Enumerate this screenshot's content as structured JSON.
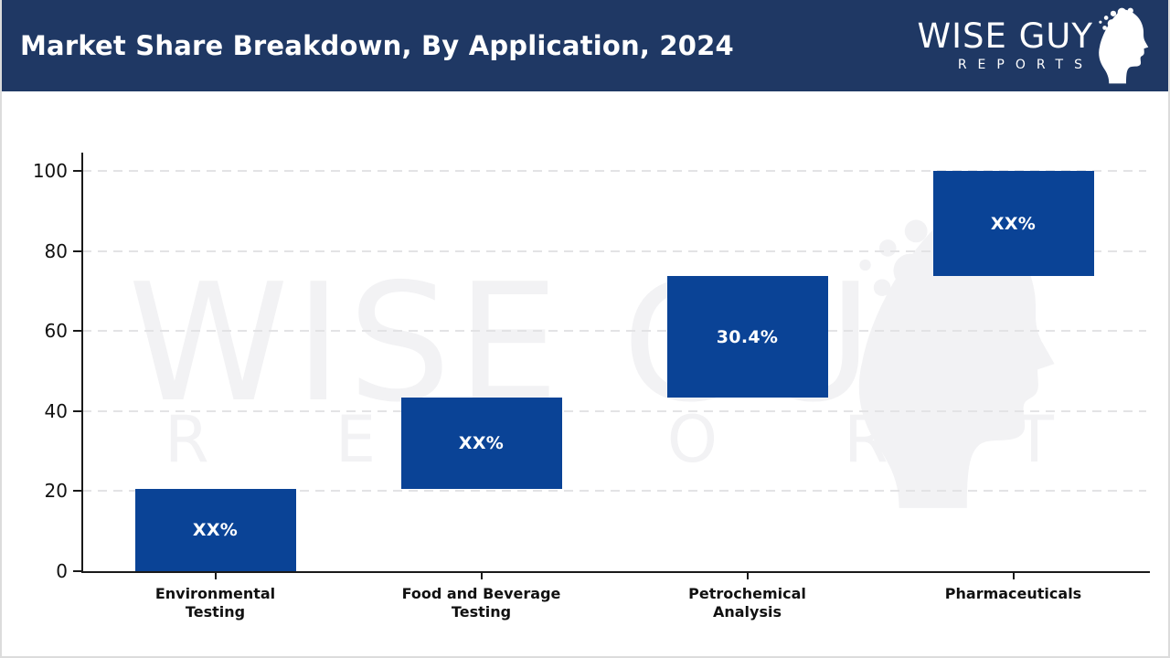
{
  "header": {
    "title": "Market Share Breakdown, By Application, 2024",
    "logo": {
      "brand_line1": "WISE GUY",
      "brand_line2": "REPORTS"
    }
  },
  "watermark": {
    "line1": "WISE GU",
    "line2": "R E P O R T S"
  },
  "chart_data": {
    "type": "bar",
    "subtype": "floating-segment-waterfall",
    "title": "Market Share Breakdown, By Application, 2024",
    "categories": [
      {
        "lines": [
          "Environmental",
          "Testing"
        ]
      },
      {
        "lines": [
          "Food and Beverage",
          "Testing"
        ]
      },
      {
        "lines": [
          "Petrochemical",
          "Analysis"
        ]
      },
      {
        "lines": [
          "Pharmaceuticals"
        ]
      }
    ],
    "segments": [
      {
        "category": "Environmental Testing",
        "start": 0,
        "end": 20.5,
        "value_label": "XX%"
      },
      {
        "category": "Food and Beverage Testing",
        "start": 20.5,
        "end": 43.3,
        "value_label": "XX%"
      },
      {
        "category": "Petrochemical Analysis",
        "start": 43.3,
        "end": 73.7,
        "value_label": "30.4%"
      },
      {
        "category": "Pharmaceuticals",
        "start": 73.7,
        "end": 100,
        "value_label": "XX%"
      }
    ],
    "yticks": [
      0,
      20,
      40,
      60,
      80,
      100
    ],
    "ylim": [
      0,
      100
    ],
    "xlabel": "",
    "ylabel": "",
    "grid": "horizontal-dashed",
    "legend": "none",
    "bar_color": "#0a4396",
    "bar_label_color": "#ffffff"
  },
  "colors": {
    "header_bg": "#1f3864",
    "bar_blue": "#0a4396",
    "gridline": "#e3e3e5",
    "axis": "#1a1a1a",
    "watermark": "#f2f2f4",
    "page_border": "#dcdcdc"
  }
}
